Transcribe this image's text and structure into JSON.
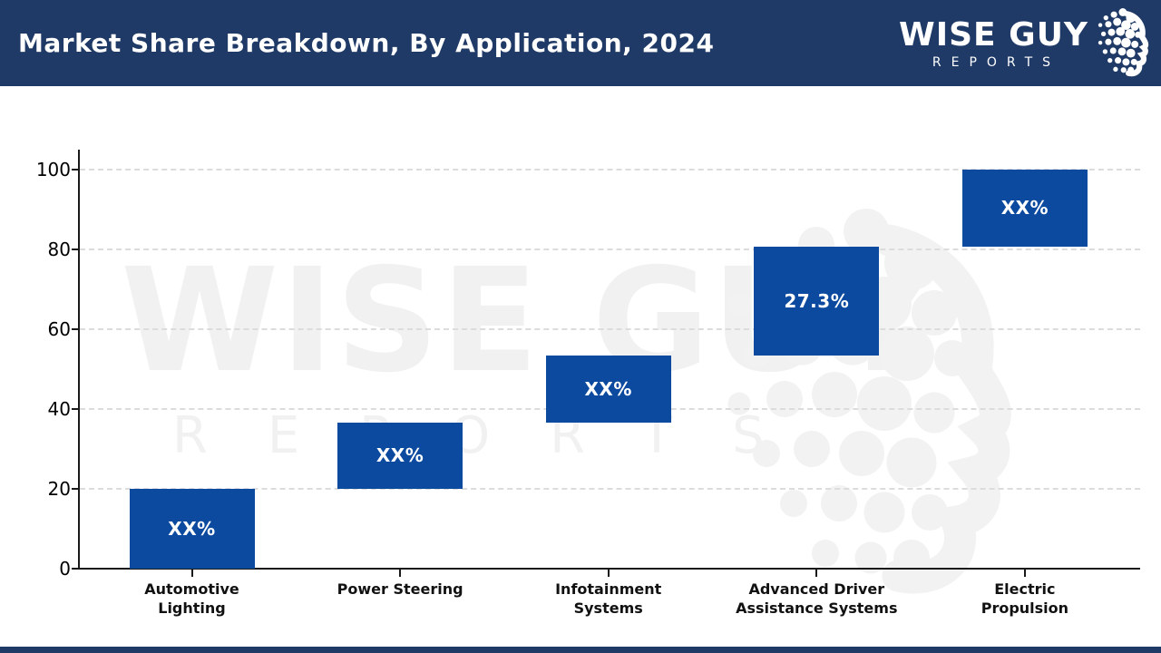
{
  "header": {
    "title": "Market Share Breakdown, By Application, 2024",
    "logo_line1": "WISE GUY",
    "logo_line2": "REPORTS"
  },
  "watermark": {
    "line1": "WISE GUY",
    "line2": "REPORTS"
  },
  "colors": {
    "header_bg": "#1f3a66",
    "bar": "#0b4a9e",
    "grid": "#dcdcdc",
    "axis": "#1a1a1a",
    "watermark": "#f1f1f1"
  },
  "chart_data": {
    "type": "bar",
    "variant": "waterfall",
    "title": "Market Share Breakdown, By Application, 2024",
    "xlabel": "",
    "ylabel": "",
    "ylim": [
      0,
      100
    ],
    "yticks": [
      0,
      20,
      40,
      60,
      80,
      100
    ],
    "grid": "horizontal-dashed",
    "legend": "none",
    "bar_color": "#0b4a9e",
    "categories": [
      "Automotive Lighting",
      "Power Steering",
      "Infotainment Systems",
      "Advanced Driver Assistance Systems",
      "Electric Propulsion"
    ],
    "category_lines": [
      [
        "Automotive",
        "Lighting"
      ],
      [
        "Power Steering"
      ],
      [
        "Infotainment",
        "Systems"
      ],
      [
        "Advanced Driver",
        "Assistance Systems"
      ],
      [
        "Electric",
        "Propulsion"
      ]
    ],
    "bars": [
      {
        "category": "Automotive Lighting",
        "label": "XX%",
        "start": 0,
        "end": 20
      },
      {
        "category": "Power Steering",
        "label": "XX%",
        "start": 20,
        "end": 36.6
      },
      {
        "category": "Infotainment Systems",
        "label": "XX%",
        "start": 36.6,
        "end": 53.4
      },
      {
        "category": "Advanced Driver Assistance Systems",
        "label": "27.3%",
        "start": 53.4,
        "end": 80.7
      },
      {
        "category": "Electric Propulsion",
        "label": "XX%",
        "start": 80.7,
        "end": 100
      }
    ]
  }
}
